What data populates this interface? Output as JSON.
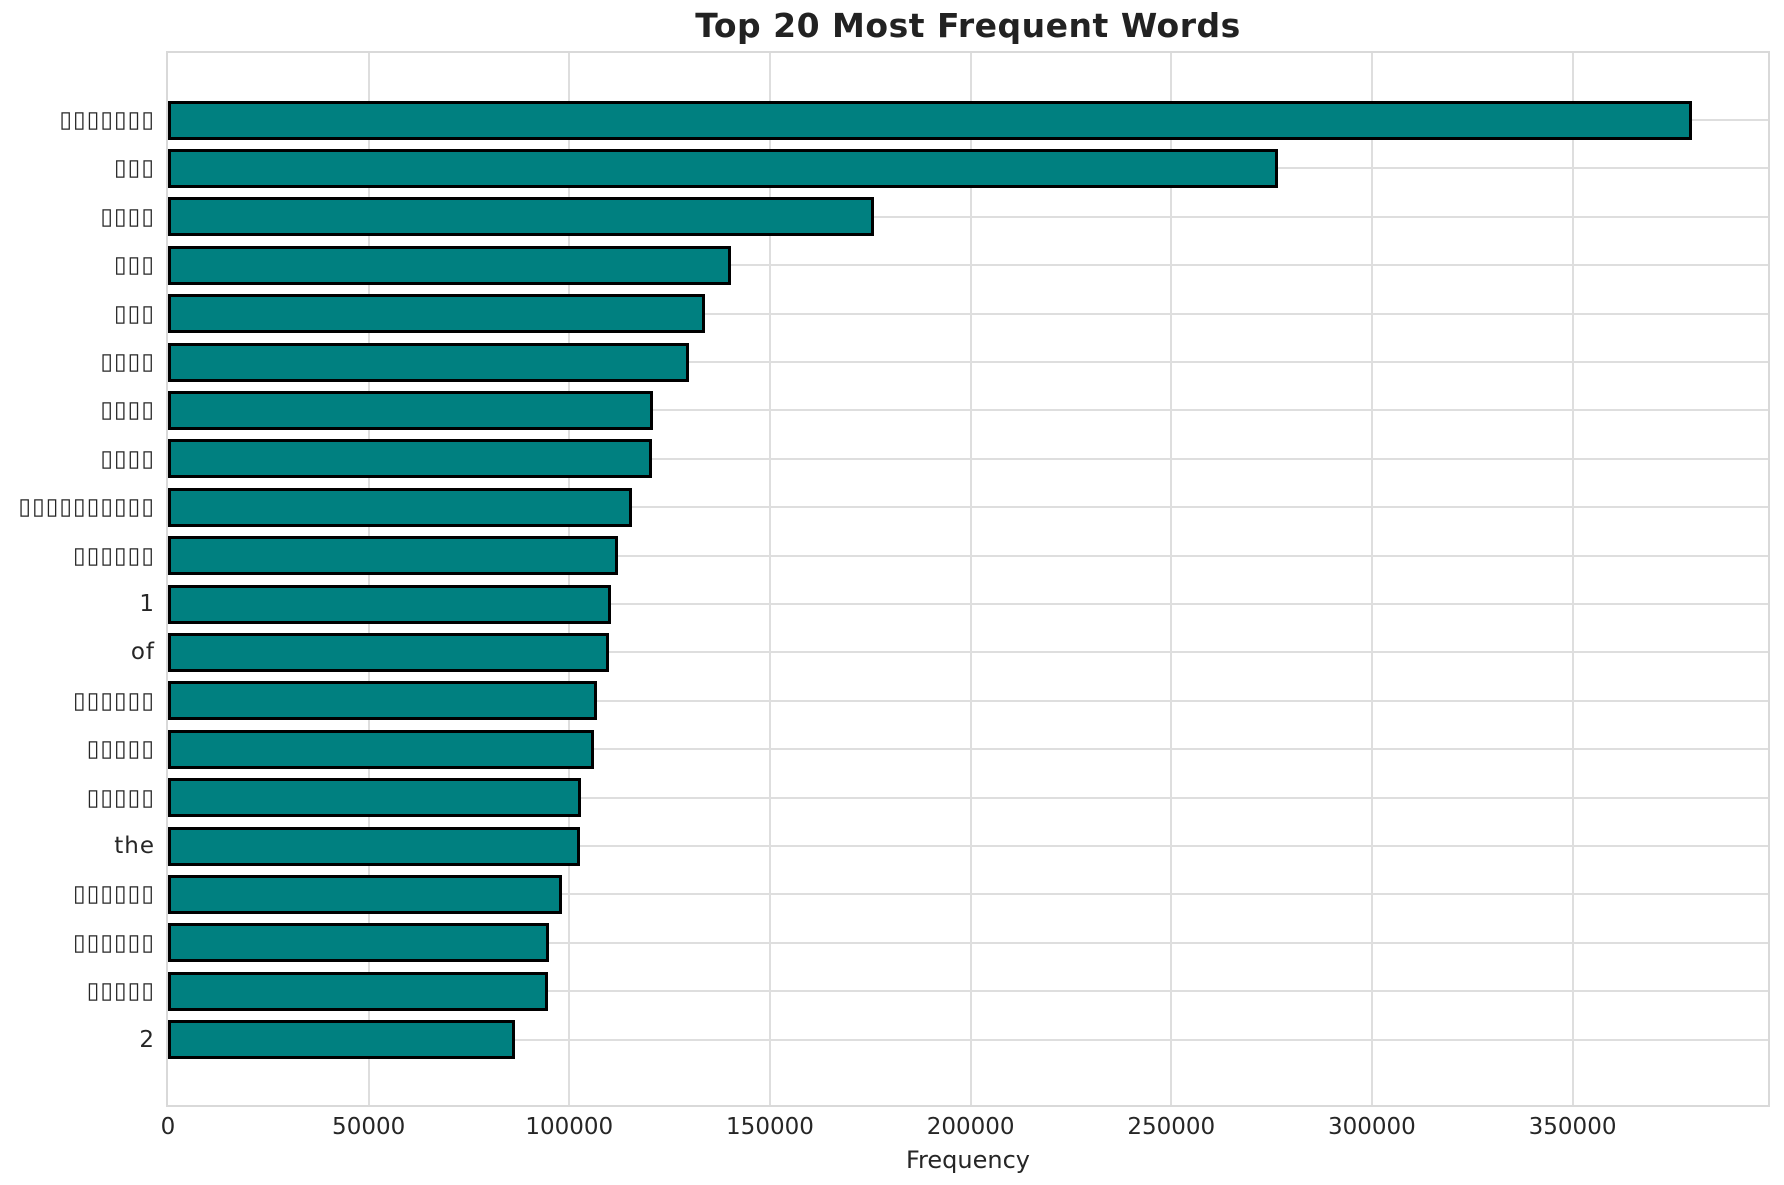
{
  "chart_data": {
    "type": "bar",
    "orientation": "horizontal",
    "title": "Top 20 Most Frequent Words",
    "xlabel": "Frequency",
    "ylabel": "",
    "categories": [
      "▯▯▯▯▯▯▯",
      "▯▯▯",
      "▯▯▯▯",
      "▯▯▯",
      "▯▯▯",
      "▯▯▯▯",
      "▯▯▯▯",
      "▯▯▯▯",
      "▯▯▯▯▯▯▯▯▯▯",
      "▯▯▯▯▯▯",
      "1",
      "of",
      "▯▯▯▯▯▯",
      "▯▯▯▯▯",
      "▯▯▯▯▯",
      "the",
      "▯▯▯▯▯▯",
      "▯▯▯▯▯▯",
      "▯▯▯▯▯",
      "2"
    ],
    "values": [
      379700,
      276600,
      175900,
      140300,
      133800,
      129800,
      120900,
      120600,
      115600,
      112100,
      110400,
      109900,
      106900,
      106200,
      102800,
      102600,
      98200,
      95000,
      94600,
      86500
    ],
    "xticks": [
      0,
      50000,
      100000,
      150000,
      200000,
      250000,
      300000,
      350000
    ],
    "xlim": [
      0,
      398700
    ],
    "grid": true,
    "legend": "none",
    "bar_color": "#008080",
    "bar_edge_color": "#000000",
    "grid_color": "#dedede",
    "text_color": "#262626"
  }
}
